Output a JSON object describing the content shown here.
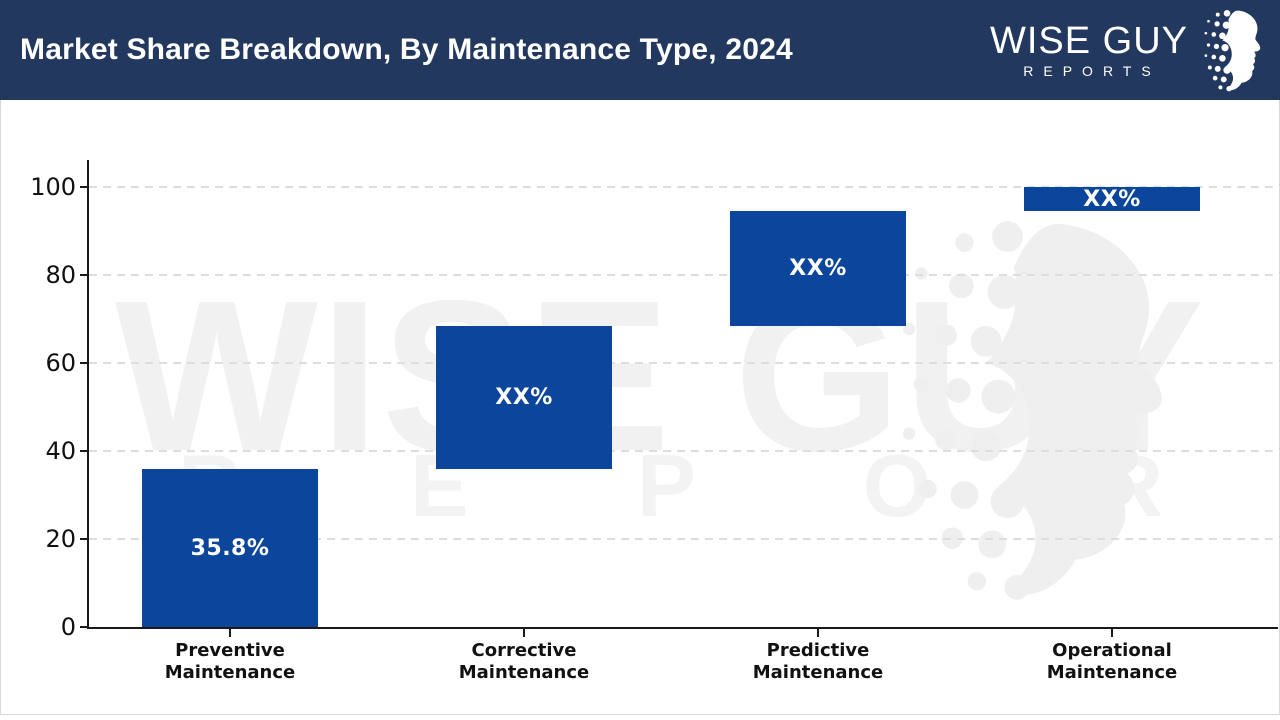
{
  "header": {
    "title": "Market Share Breakdown, By Maintenance Type, 2024",
    "bg_color": "#22385e",
    "logo": {
      "name": "WISE GUY REPORTS",
      "line1": "WISE GUY",
      "line2": "REPORTS"
    }
  },
  "watermark": {
    "line1": "WISE GUY",
    "line2": "R E P O R T S"
  },
  "chart_data": {
    "type": "bar",
    "subtype": "waterfall-stacked-breakdown",
    "title": "Market Share Breakdown, By Maintenance Type, 2024",
    "categories": [
      "Preventive Maintenance",
      "Corrective Maintenance",
      "Predictive Maintenance",
      "Operational Maintenance"
    ],
    "category_lines": [
      [
        "Preventive",
        "Maintenance"
      ],
      [
        "Corrective",
        "Maintenance"
      ],
      [
        "Predictive",
        "Maintenance"
      ],
      [
        "Operational",
        "Maintenance"
      ]
    ],
    "segments": [
      {
        "category": "Preventive Maintenance",
        "start": 0,
        "end": 35.8,
        "value": 35.8,
        "label": "35.8%"
      },
      {
        "category": "Corrective Maintenance",
        "start": 35.8,
        "end": 68.4,
        "value": "XX",
        "label": "XX%"
      },
      {
        "category": "Predictive Maintenance",
        "start": 68.4,
        "end": 94.5,
        "value": "XX",
        "label": "XX%"
      },
      {
        "category": "Operational Maintenance",
        "start": 94.5,
        "end": 100,
        "value": "XX",
        "label": "XX%"
      }
    ],
    "ylim": [
      0,
      100
    ],
    "yticks": [
      0,
      20,
      40,
      60,
      80,
      100
    ],
    "xlabel": "",
    "ylabel": "",
    "grid": "horizontal-dashed",
    "legend": "none",
    "bar_color": "#0c459c",
    "value_label_color": "#ffffff",
    "grid_color": "#dedede"
  }
}
